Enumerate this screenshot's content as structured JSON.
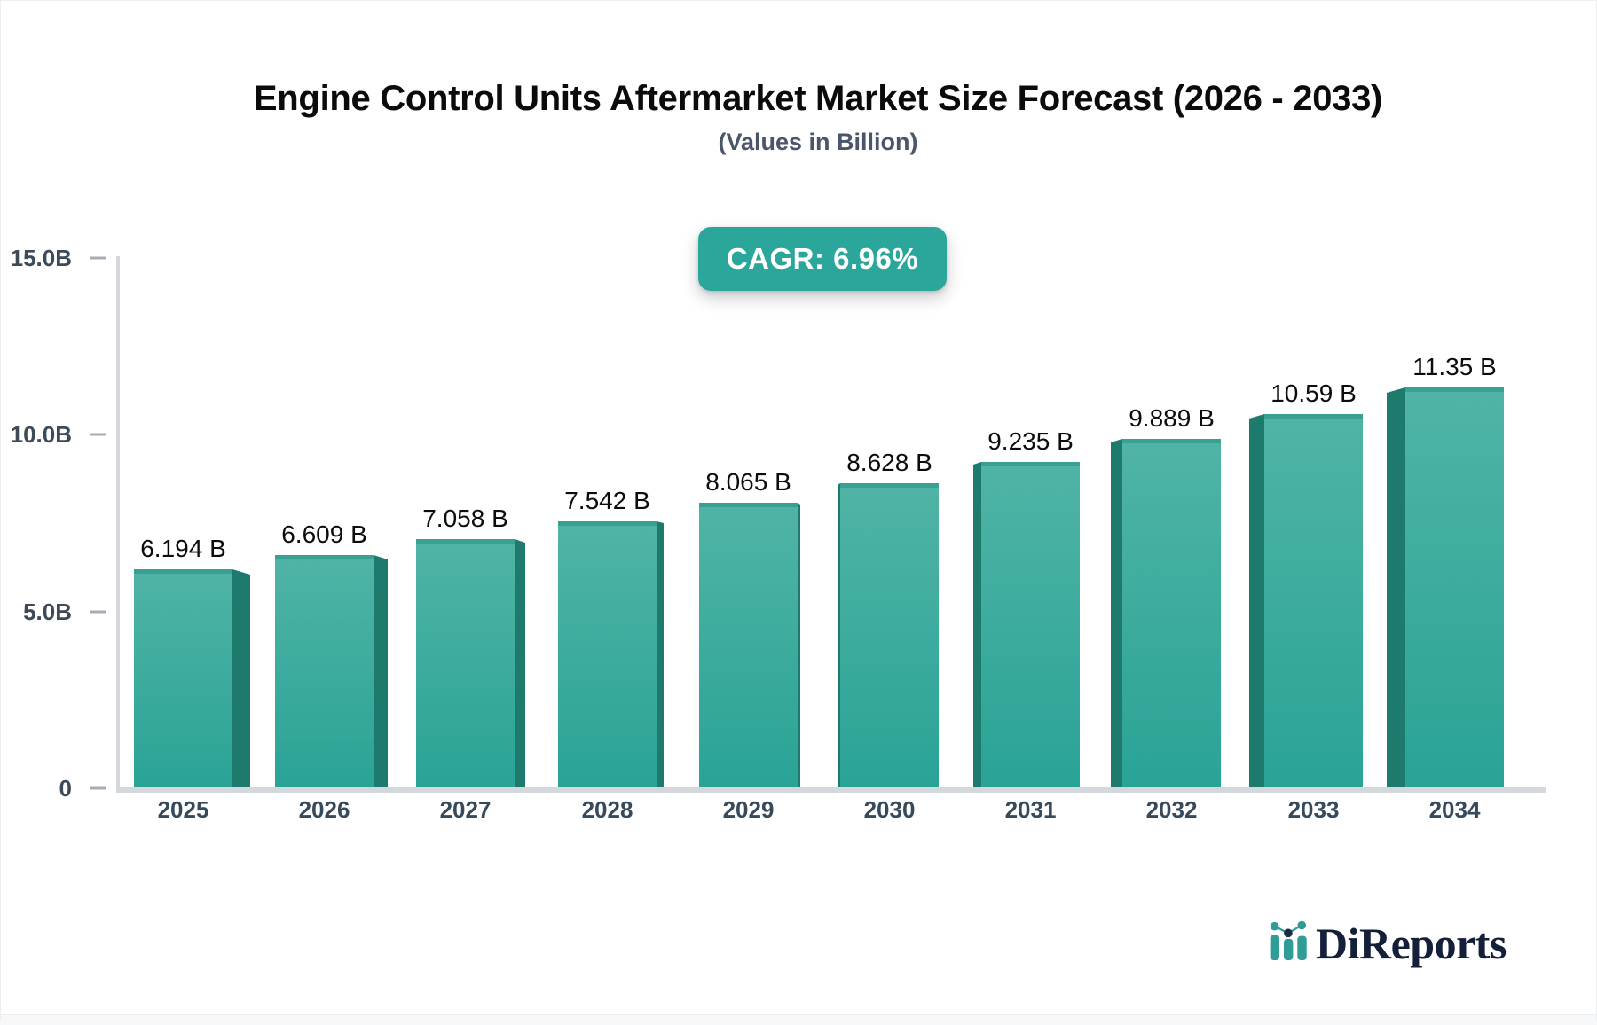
{
  "header": {
    "title": "Engine Control Units Aftermarket Market Size Forecast (2026 - 2033)",
    "subtitle": "(Values in Billion)",
    "cagr_badge": "CAGR: 6.96%"
  },
  "chart_data": {
    "type": "bar",
    "title": "Engine Control Units Aftermarket Market Size Forecast (2026 - 2033)",
    "subtitle": "(Values in Billion)",
    "xlabel": "",
    "ylabel": "",
    "unit": "Billion",
    "categories": [
      "2025",
      "2026",
      "2027",
      "2028",
      "2029",
      "2030",
      "2031",
      "2032",
      "2033",
      "2034"
    ],
    "values": [
      6.194,
      6.609,
      7.058,
      7.542,
      8.065,
      8.628,
      9.235,
      9.889,
      10.59,
      11.35
    ],
    "value_labels": [
      "6.194 B",
      "6.609 B",
      "7.058 B",
      "7.542 B",
      "8.065 B",
      "8.628 B",
      "9.235 B",
      "9.889 B",
      "10.59 B",
      "11.35 B"
    ],
    "ylim": [
      0,
      15
    ],
    "yticks": [
      {
        "value": 0,
        "label": "0"
      },
      {
        "value": 5,
        "label": "5.0B"
      },
      {
        "value": 10,
        "label": "10.0B"
      },
      {
        "value": 15,
        "label": "15.0B"
      }
    ],
    "grid": false,
    "legend_position": "none",
    "cagr": "6.96%"
  },
  "colors": {
    "bar_face_top": "#50b4a6",
    "bar_face_bottom": "#29a396",
    "bar_side": "#1f7a6e",
    "bar_cap": "#3aa093",
    "badge_bg": "#2aa79a",
    "axis_line": "#d4d7db",
    "tick": "#a6adb6",
    "axis_label": "#3c4a59",
    "year_label": "#374a5c",
    "data_label": "#0b0c0e",
    "logo_text": "#14203a",
    "logo_accent": "#2f9d95",
    "logo_dot_dark": "#1c2b45"
  },
  "logo": {
    "text": "DiReports"
  }
}
